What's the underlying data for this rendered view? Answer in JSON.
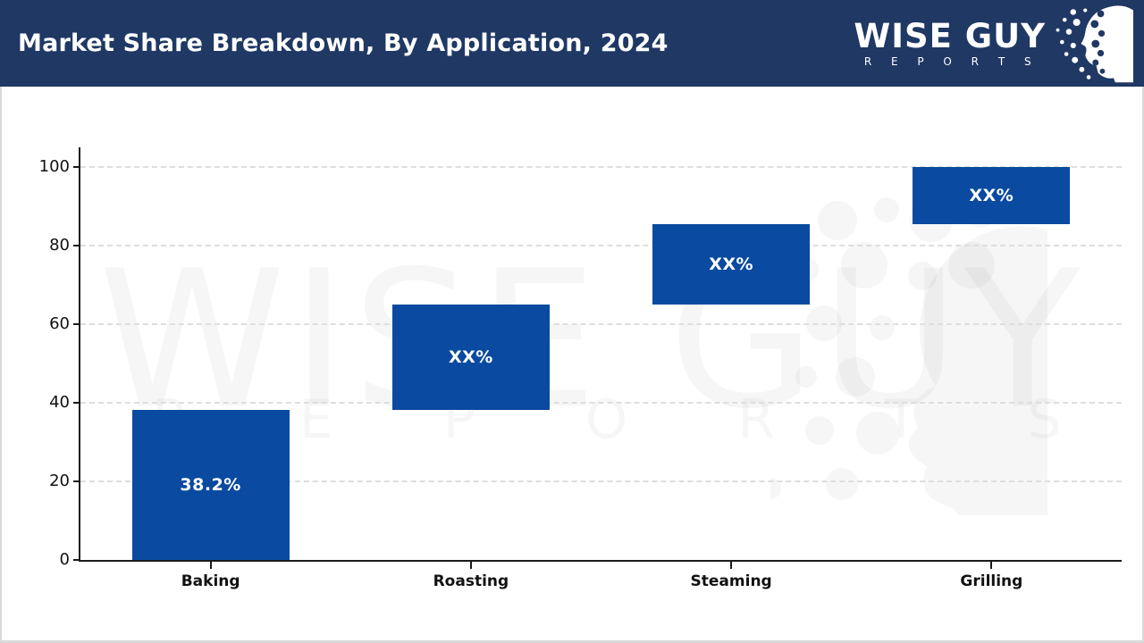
{
  "header": {
    "title": "Market Share Breakdown, By Application, 2024",
    "bg_color": "#1f3864",
    "logo": {
      "line1": "WISE GUY",
      "line2": "R E P O R T S"
    }
  },
  "watermark": {
    "line1": "WISE GUY",
    "line2": "R E P O R T S"
  },
  "chart_data": {
    "type": "bar",
    "subtype": "waterfall",
    "title": "Market Share Breakdown, By Application, 2024",
    "categories": [
      "Baking",
      "Roasting",
      "Steaming",
      "Grilling"
    ],
    "segments": [
      {
        "category": "Baking",
        "start": 0,
        "end": 38.2,
        "label": "38.2%"
      },
      {
        "category": "Roasting",
        "start": 38.2,
        "end": 65.0,
        "label": "XX%"
      },
      {
        "category": "Steaming",
        "start": 65.0,
        "end": 85.5,
        "label": "XX%"
      },
      {
        "category": "Grilling",
        "start": 85.5,
        "end": 100,
        "label": "XX%"
      }
    ],
    "xlabel": "",
    "ylabel": "",
    "ylim": [
      0,
      100
    ],
    "yticks": [
      0,
      20,
      40,
      60,
      80,
      100
    ],
    "grid": "horizontal-dashed",
    "legend": "none",
    "bar_color": "#0a4aa0",
    "bar_label_color": "#ffffff",
    "axis_color": "#1a1a1a",
    "grid_color": "#dedede"
  }
}
